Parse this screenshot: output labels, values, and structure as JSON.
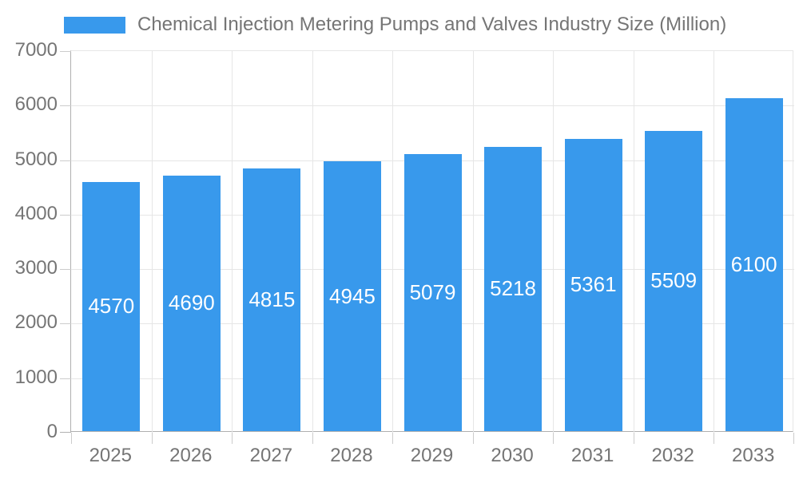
{
  "legend": {
    "label": "Chemical Injection Metering Pumps and Valves Industry Size (Million)"
  },
  "colors": {
    "bar": "#3899ec",
    "grid": "#e6e6e6",
    "axis": "#b0b0b0",
    "tick": "#cccccc",
    "text": "#757575",
    "value_text": "#ffffff",
    "background": "#ffffff"
  },
  "chart_data": {
    "type": "bar",
    "title": "Chemical Injection Metering Pumps and Valves Industry Size (Million)",
    "categories": [
      "2025",
      "2026",
      "2027",
      "2028",
      "2029",
      "2030",
      "2031",
      "2032",
      "2033"
    ],
    "values": [
      4570,
      4690,
      4815,
      4945,
      5079,
      5218,
      5361,
      5509,
      6100
    ],
    "xlabel": "",
    "ylabel": "",
    "ylim": [
      0,
      7000
    ],
    "yticks": [
      0,
      1000,
      2000,
      3000,
      4000,
      5000,
      6000,
      7000
    ],
    "grid": true,
    "legend_position": "top-left",
    "value_labels": "inside-center"
  }
}
